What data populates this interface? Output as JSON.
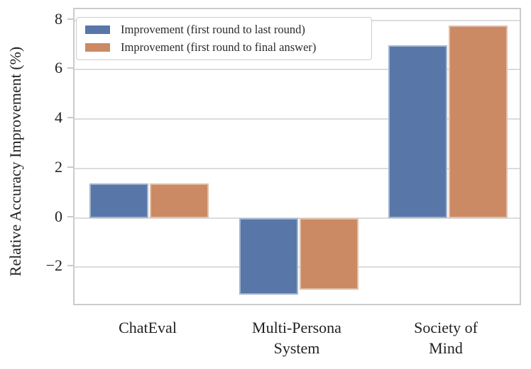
{
  "chart_data": {
    "type": "bar",
    "title": "",
    "ylabel": "Relative Accuracy Improvement (%)",
    "xlabel": "",
    "categories": [
      "ChatEval",
      "Multi-Persona\nSystem",
      "Society of Mind"
    ],
    "series": [
      {
        "name": "Improvement (first round to last round)",
        "color": "#5877a8",
        "values": [
          1.4,
          -3.1,
          7.0
        ]
      },
      {
        "name": "Improvement (first round to final answer)",
        "color": "#cb8a63",
        "values": [
          1.4,
          -2.9,
          7.8
        ]
      }
    ],
    "ylim": [
      -3.6,
      8.45
    ],
    "yticks": [
      {
        "value": 8,
        "label": "8"
      },
      {
        "value": 6,
        "label": "6"
      },
      {
        "value": 4,
        "label": "4"
      },
      {
        "value": 2,
        "label": "2"
      },
      {
        "value": 0,
        "label": "0"
      },
      {
        "value": -2,
        "label": "−2"
      }
    ],
    "grid": true,
    "legend_position": "upper-left"
  },
  "style": {
    "grid_color": "#dcdcdc",
    "spine_color": "#cbcbcb",
    "text_color": "#222222",
    "background": "#ffffff"
  }
}
